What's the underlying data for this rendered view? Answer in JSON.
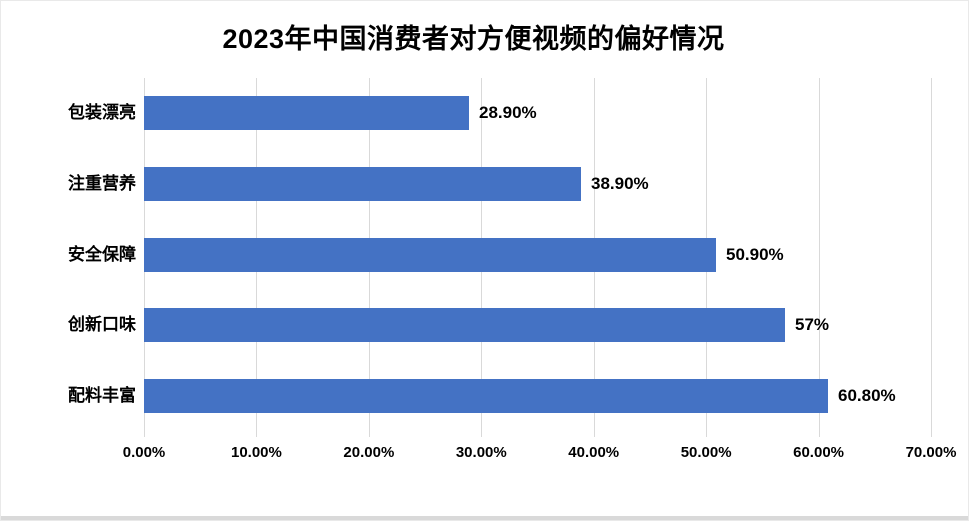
{
  "page": {
    "title": "2023年中国消费者对方便视频的偏好情况"
  },
  "chart_data": {
    "type": "bar",
    "orientation": "horizontal",
    "title": "2023年中国消费者对方便视频的偏好情况",
    "categories": [
      "包装漂亮",
      "注重营养",
      "安全保障",
      "创新口味",
      "配料丰富"
    ],
    "values": [
      28.9,
      38.9,
      50.9,
      57,
      60.8
    ],
    "value_labels": [
      "28.90%",
      "38.90%",
      "50.90%",
      "57%",
      "60.80%"
    ],
    "xlabel": "",
    "ylabel": "",
    "xlim": [
      0,
      70
    ],
    "xtick_values": [
      0,
      10,
      20,
      30,
      40,
      50,
      60,
      70
    ],
    "xtick_labels": [
      "0.00%",
      "10.00%",
      "20.00%",
      "30.00%",
      "40.00%",
      "50.00%",
      "60.00%",
      "70.00%"
    ],
    "grid": "vertical-only",
    "legend": "none",
    "colors": {
      "bar": "#4472c4",
      "gridline": "#d9d9d9",
      "text": "#000000",
      "bottom_edge": "#d9d9d9"
    }
  }
}
